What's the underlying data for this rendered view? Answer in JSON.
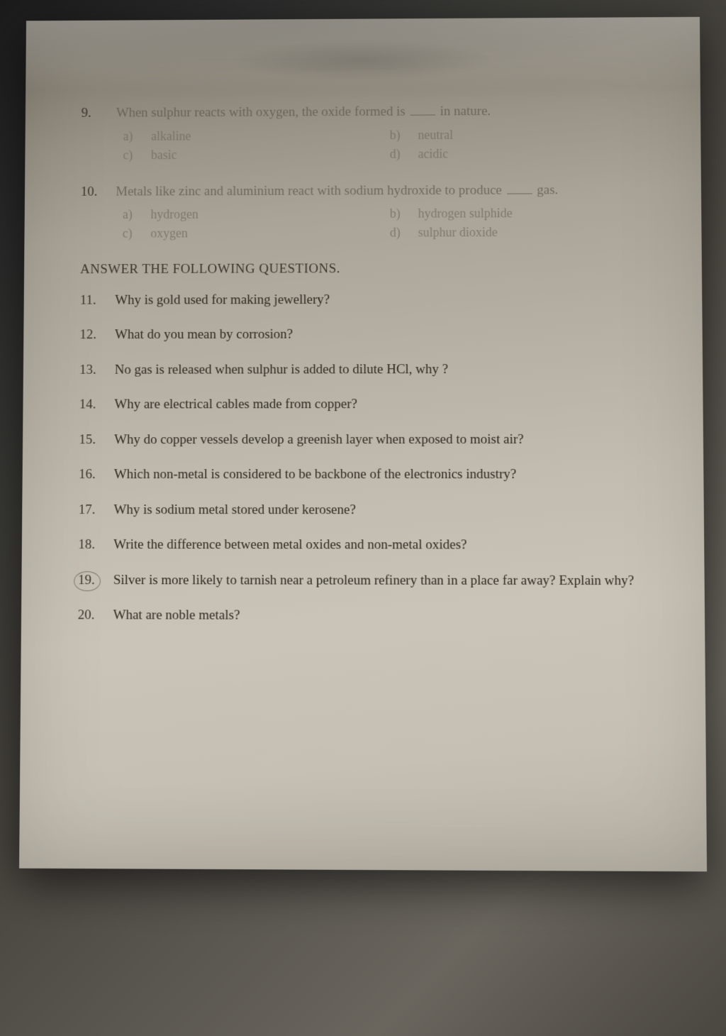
{
  "mcq": [
    {
      "num": "9.",
      "text_before": "When sulphur reacts with oxygen, the oxide formed is ",
      "text_after": " in nature.",
      "options": [
        {
          "label": "a)",
          "text": "alkaline"
        },
        {
          "label": "b)",
          "text": "neutral"
        },
        {
          "label": "c)",
          "text": "basic"
        },
        {
          "label": "d)",
          "text": "acidic"
        }
      ]
    },
    {
      "num": "10.",
      "text_before": "Metals like zinc and aluminium react with sodium hydroxide to produce ",
      "text_after": " gas.",
      "options": [
        {
          "label": "a)",
          "text": "hydrogen"
        },
        {
          "label": "b)",
          "text": "hydrogen sulphide"
        },
        {
          "label": "c)",
          "text": "oxygen"
        },
        {
          "label": "d)",
          "text": "sulphur dioxide"
        }
      ]
    }
  ],
  "section_title": "ANSWER THE FOLLOWING QUESTIONS.",
  "short_answer": [
    {
      "num": "11.",
      "text": "Why is gold used for making jewellery?"
    },
    {
      "num": "12.",
      "text": "What do you mean by corrosion?"
    },
    {
      "num": "13.",
      "text": "No gas is released when sulphur is added to dilute HCl, why ?"
    },
    {
      "num": "14.",
      "text": "Why are electrical cables made from copper?"
    },
    {
      "num": "15.",
      "text": "Why do copper vessels develop a greenish layer when exposed to moist air?"
    },
    {
      "num": "16.",
      "text": "Which non-metal is considered to be backbone of the electronics industry?"
    },
    {
      "num": "17.",
      "text": "Why is sodium metal stored under kerosene?"
    },
    {
      "num": "18.",
      "text": "Write the difference between metal oxides and non-metal oxides?"
    },
    {
      "num": "19.",
      "text": "Silver is more likely to tarnish near a petroleum refinery than in a place far away? Explain why?",
      "circled": true
    },
    {
      "num": "20.",
      "text": "What are noble metals?"
    }
  ]
}
